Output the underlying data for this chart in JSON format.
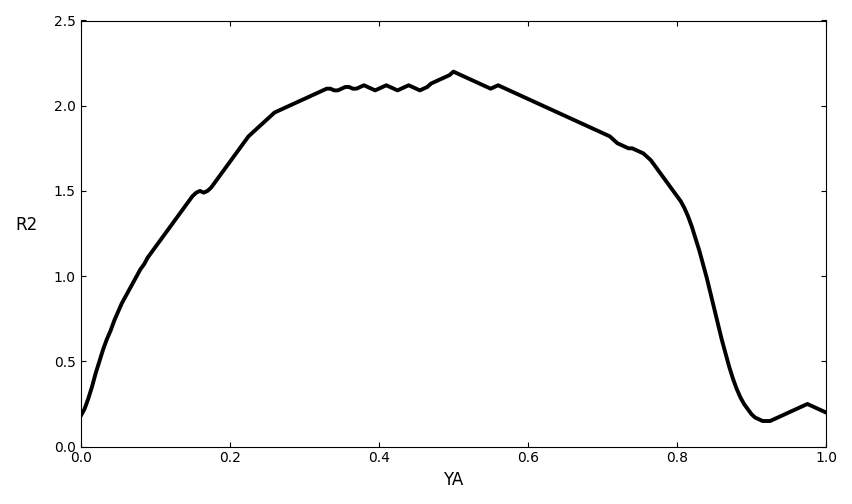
{
  "title": "",
  "xlabel": "YA",
  "ylabel": "R2",
  "xlim": [
    0,
    1.0
  ],
  "ylim": [
    0,
    2.5
  ],
  "xticks": [
    0,
    0.2,
    0.4,
    0.6,
    0.8,
    1.0
  ],
  "yticks": [
    0,
    0.5,
    1.0,
    1.5,
    2.0,
    2.5
  ],
  "line_color": "#000000",
  "line_width": 2.8,
  "background_color": "#ffffff",
  "x": [
    0.0,
    0.005,
    0.01,
    0.015,
    0.02,
    0.025,
    0.03,
    0.035,
    0.04,
    0.045,
    0.05,
    0.055,
    0.06,
    0.065,
    0.07,
    0.075,
    0.08,
    0.085,
    0.09,
    0.095,
    0.1,
    0.105,
    0.11,
    0.115,
    0.12,
    0.125,
    0.13,
    0.135,
    0.14,
    0.145,
    0.15,
    0.155,
    0.16,
    0.165,
    0.17,
    0.175,
    0.18,
    0.185,
    0.19,
    0.195,
    0.2,
    0.205,
    0.21,
    0.215,
    0.22,
    0.225,
    0.23,
    0.235,
    0.24,
    0.245,
    0.25,
    0.255,
    0.26,
    0.265,
    0.27,
    0.275,
    0.28,
    0.285,
    0.29,
    0.295,
    0.3,
    0.305,
    0.31,
    0.315,
    0.32,
    0.325,
    0.33,
    0.335,
    0.34,
    0.345,
    0.35,
    0.355,
    0.36,
    0.365,
    0.37,
    0.375,
    0.38,
    0.385,
    0.39,
    0.395,
    0.4,
    0.405,
    0.41,
    0.415,
    0.42,
    0.425,
    0.43,
    0.435,
    0.44,
    0.445,
    0.45,
    0.455,
    0.46,
    0.465,
    0.47,
    0.475,
    0.48,
    0.485,
    0.49,
    0.495,
    0.5,
    0.505,
    0.51,
    0.515,
    0.52,
    0.525,
    0.53,
    0.535,
    0.54,
    0.545,
    0.55,
    0.555,
    0.56,
    0.565,
    0.57,
    0.575,
    0.58,
    0.585,
    0.59,
    0.595,
    0.6,
    0.605,
    0.61,
    0.615,
    0.62,
    0.625,
    0.63,
    0.635,
    0.64,
    0.645,
    0.65,
    0.655,
    0.66,
    0.665,
    0.67,
    0.675,
    0.68,
    0.685,
    0.69,
    0.695,
    0.7,
    0.705,
    0.71,
    0.715,
    0.72,
    0.725,
    0.73,
    0.735,
    0.74,
    0.745,
    0.75,
    0.755,
    0.76,
    0.765,
    0.77,
    0.775,
    0.78,
    0.785,
    0.79,
    0.795,
    0.8,
    0.805,
    0.81,
    0.815,
    0.82,
    0.825,
    0.83,
    0.835,
    0.84,
    0.845,
    0.85,
    0.855,
    0.86,
    0.865,
    0.87,
    0.875,
    0.88,
    0.885,
    0.89,
    0.895,
    0.9,
    0.905,
    0.91,
    0.915,
    0.92,
    0.925,
    0.93,
    0.935,
    0.94,
    0.945,
    0.95,
    0.955,
    0.96,
    0.965,
    0.97,
    0.975,
    0.98,
    0.985,
    0.99,
    0.995,
    1.0
  ],
  "y": [
    0.18,
    0.22,
    0.28,
    0.35,
    0.43,
    0.5,
    0.57,
    0.63,
    0.68,
    0.74,
    0.79,
    0.84,
    0.88,
    0.92,
    0.96,
    1.0,
    1.04,
    1.07,
    1.11,
    1.14,
    1.17,
    1.2,
    1.23,
    1.26,
    1.29,
    1.32,
    1.35,
    1.38,
    1.41,
    1.44,
    1.47,
    1.49,
    1.5,
    1.49,
    1.5,
    1.52,
    1.55,
    1.58,
    1.61,
    1.64,
    1.67,
    1.7,
    1.73,
    1.76,
    1.79,
    1.82,
    1.84,
    1.86,
    1.88,
    1.9,
    1.92,
    1.94,
    1.96,
    1.97,
    1.98,
    1.99,
    2.0,
    2.01,
    2.02,
    2.03,
    2.04,
    2.05,
    2.06,
    2.07,
    2.08,
    2.09,
    2.1,
    2.1,
    2.09,
    2.09,
    2.1,
    2.11,
    2.11,
    2.1,
    2.1,
    2.11,
    2.12,
    2.11,
    2.1,
    2.09,
    2.1,
    2.11,
    2.12,
    2.11,
    2.1,
    2.09,
    2.1,
    2.11,
    2.12,
    2.11,
    2.1,
    2.09,
    2.1,
    2.11,
    2.13,
    2.14,
    2.15,
    2.16,
    2.17,
    2.18,
    2.2,
    2.19,
    2.18,
    2.17,
    2.16,
    2.15,
    2.14,
    2.13,
    2.12,
    2.11,
    2.1,
    2.11,
    2.12,
    2.11,
    2.1,
    2.09,
    2.08,
    2.07,
    2.06,
    2.05,
    2.04,
    2.03,
    2.02,
    2.01,
    2.0,
    1.99,
    1.98,
    1.97,
    1.96,
    1.95,
    1.94,
    1.93,
    1.92,
    1.91,
    1.9,
    1.89,
    1.88,
    1.87,
    1.86,
    1.85,
    1.84,
    1.83,
    1.82,
    1.8,
    1.78,
    1.77,
    1.76,
    1.75,
    1.75,
    1.74,
    1.73,
    1.72,
    1.7,
    1.68,
    1.65,
    1.62,
    1.59,
    1.56,
    1.53,
    1.5,
    1.47,
    1.44,
    1.4,
    1.35,
    1.29,
    1.22,
    1.15,
    1.07,
    0.99,
    0.9,
    0.81,
    0.72,
    0.63,
    0.55,
    0.47,
    0.4,
    0.34,
    0.29,
    0.25,
    0.22,
    0.19,
    0.17,
    0.16,
    0.15,
    0.15,
    0.15,
    0.16,
    0.17,
    0.18,
    0.19,
    0.2,
    0.21,
    0.22,
    0.23,
    0.24,
    0.25,
    0.24,
    0.23,
    0.22,
    0.21,
    0.2
  ]
}
